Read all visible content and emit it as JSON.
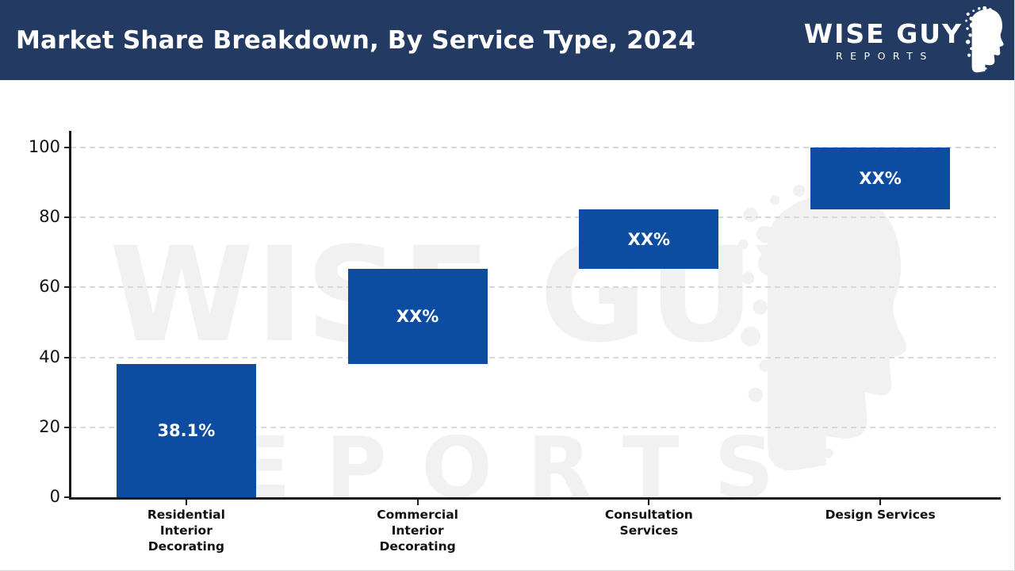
{
  "header": {
    "title": "Market Share Breakdown, By Service Type, 2024",
    "logo": {
      "name": "WISE GUY",
      "sub": "REPORTS"
    }
  },
  "watermark": {
    "name": "WISE GUY",
    "sub": "REPORTS"
  },
  "colors": {
    "header_bg": "#233A63",
    "bar_fill": "#0D4DA1",
    "bar_label": "#FFFFFF",
    "grid": "#D9D9D9",
    "axis": "#1A1A1A",
    "tick_text": "#111111",
    "watermark": "#F1F1F1"
  },
  "chart_data": {
    "type": "bar",
    "subtype": "floating-waterfall",
    "title": "Market Share Breakdown, By Service Type, 2024",
    "xlabel": "",
    "ylabel": "",
    "yticks": [
      0,
      20,
      40,
      60,
      80,
      100
    ],
    "ylim": [
      0,
      105
    ],
    "grid": "dashed-horizontal",
    "legend": false,
    "categories": [
      "Residential\nInterior\nDecorating",
      "Commercial\nInterior\nDecorating",
      "Consultation\nServices",
      "Design Services"
    ],
    "bars": [
      {
        "category": "Residential Interior Decorating",
        "start": 0,
        "end": 38.1,
        "label": "38.1%"
      },
      {
        "category": "Commercial Interior Decorating",
        "start": 38.1,
        "end": 65.3,
        "label": "XX%"
      },
      {
        "category": "Consultation Services",
        "start": 65.3,
        "end": 82.3,
        "label": "XX%"
      },
      {
        "category": "Design Services",
        "start": 82.3,
        "end": 100,
        "label": "XX%"
      }
    ]
  }
}
